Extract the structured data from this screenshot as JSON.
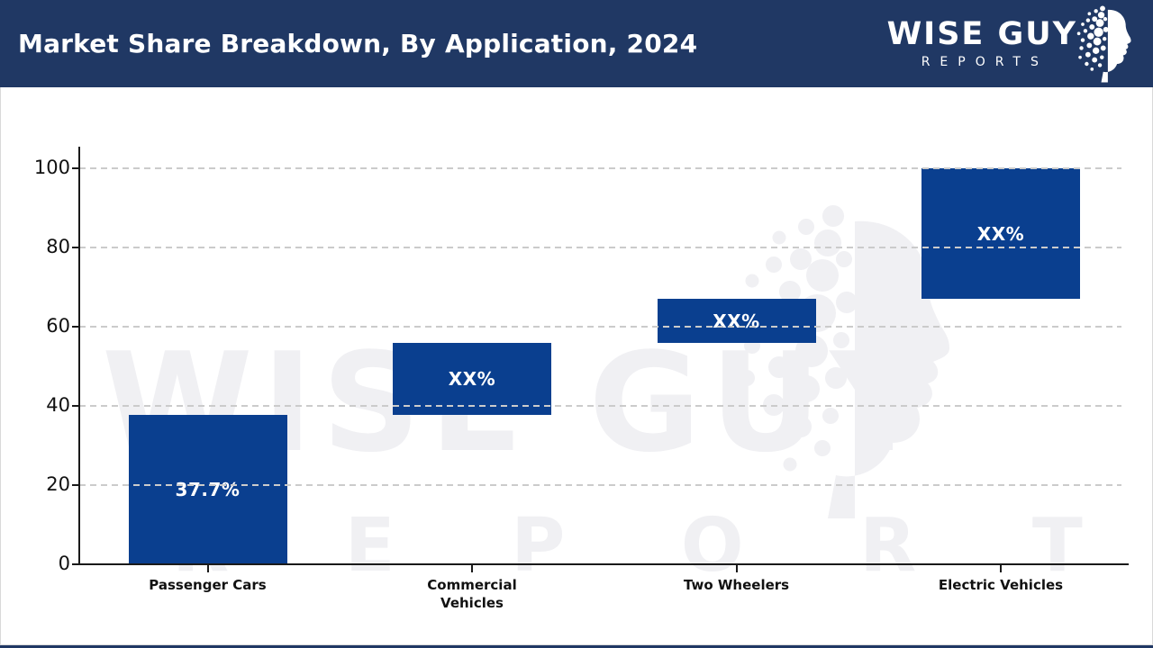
{
  "header": {
    "title": "Market Share Breakdown, By Application, 2024",
    "logo": {
      "primary": "WISE GUY",
      "secondary": "REPORTS"
    }
  },
  "watermark": {
    "primary": "WISE GUY",
    "secondary": "R E P O R T S"
  },
  "chart_data": {
    "type": "bar",
    "subtype": "waterfall",
    "title": "Market Share Breakdown, By Application, 2024",
    "categories": [
      "Passenger Cars",
      "Commercial Vehicles",
      "Two Wheelers",
      "Electric Vehicles"
    ],
    "segments": [
      {
        "category": "Passenger Cars",
        "start": 0,
        "end": 37.7,
        "label": "37.7%"
      },
      {
        "category": "Commercial Vehicles",
        "start": 37.7,
        "end": 55.9,
        "label": "XX%"
      },
      {
        "category": "Two Wheelers",
        "start": 55.9,
        "end": 67.0,
        "label": "XX%"
      },
      {
        "category": "Electric Vehicles",
        "start": 67.0,
        "end": 100,
        "label": "XX%"
      }
    ],
    "ylabel": "",
    "xlabel": "",
    "ylim": [
      0,
      100
    ],
    "yticks": [
      0,
      20,
      40,
      60,
      80,
      100
    ],
    "grid": {
      "axis": "y",
      "style": "dashed",
      "over_bars": true
    },
    "legend": "none",
    "colors": {
      "header_bg": "#203864",
      "bar": "#0a3f8f",
      "bar_label": "#ffffff",
      "axis": "#1a1a1a",
      "grid": "#cbcbcb",
      "watermark": "#f0f0f3"
    }
  }
}
